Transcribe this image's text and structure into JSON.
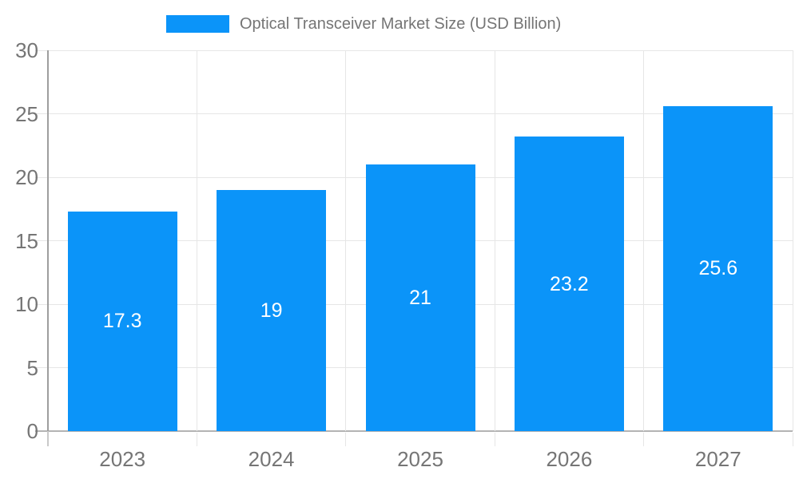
{
  "legend": {
    "label": "Optical Transceiver Market Size (USD Billion)",
    "swatch_color": "#0b94f9"
  },
  "chart_data": {
    "type": "bar",
    "title": "Optical Transceiver Market Size (USD Billion)",
    "categories": [
      "2023",
      "2024",
      "2025",
      "2026",
      "2027"
    ],
    "values": [
      17.3,
      19,
      21,
      23.2,
      25.6
    ],
    "value_labels": [
      "17.3",
      "19",
      "21",
      "23.2",
      "25.6"
    ],
    "xlabel": "",
    "ylabel": "",
    "ylim": [
      0,
      30
    ],
    "yticks": [
      0,
      5,
      10,
      15,
      20,
      25,
      30
    ],
    "grid": true,
    "legend_position": "top",
    "value_labels_inside_bars": true
  },
  "colors": {
    "bar": "#0b94f9",
    "value_label": "#ffffff",
    "axis_line": "#9e9e9e",
    "axis_tick_below": "#c9c9c9",
    "baseline": "#b3b3b3",
    "gridline": "#e6e6e6",
    "tick_label": "#757575",
    "legend_text": "#757575",
    "background": "#ffffff"
  }
}
